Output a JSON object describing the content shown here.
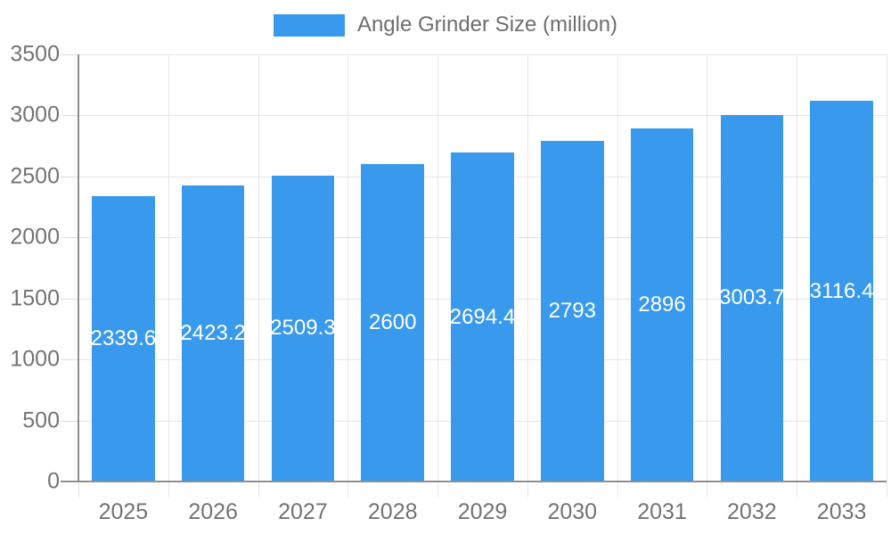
{
  "legend": {
    "label": "Angle Grinder Size (million)",
    "swatch_color": "#3999EC"
  },
  "chart_data": {
    "type": "bar",
    "title": "Angle Grinder Size (million)",
    "categories": [
      "2025",
      "2026",
      "2027",
      "2028",
      "2029",
      "2030",
      "2031",
      "2032",
      "2033"
    ],
    "values": [
      2339.6,
      2423.2,
      2509.3,
      2600,
      2694.4,
      2793,
      2896,
      3003.7,
      3116.4
    ],
    "value_labels": [
      "2339.6",
      "2423.2",
      "2509.3",
      "2600",
      "2694.4",
      "2793",
      "2896",
      "3003.7",
      "3116.4"
    ],
    "xlabel": "",
    "ylabel": "",
    "ylim": [
      0,
      3500
    ],
    "yticks": [
      0,
      500,
      1000,
      1500,
      2000,
      2500,
      3000,
      3500
    ],
    "grid": true,
    "legend_position": "top-center",
    "bar_color": "#3999EC",
    "value_label_color": "#FFFFFF"
  },
  "colors": {
    "background": "#FFFFFF",
    "bar": "#3999EC",
    "axis_text": "#737373",
    "legend_text": "#6E6E6E",
    "grid_line": "#E6E6E6",
    "axis_line": "#8E8E8E",
    "value_label": "#FFFFFF"
  }
}
